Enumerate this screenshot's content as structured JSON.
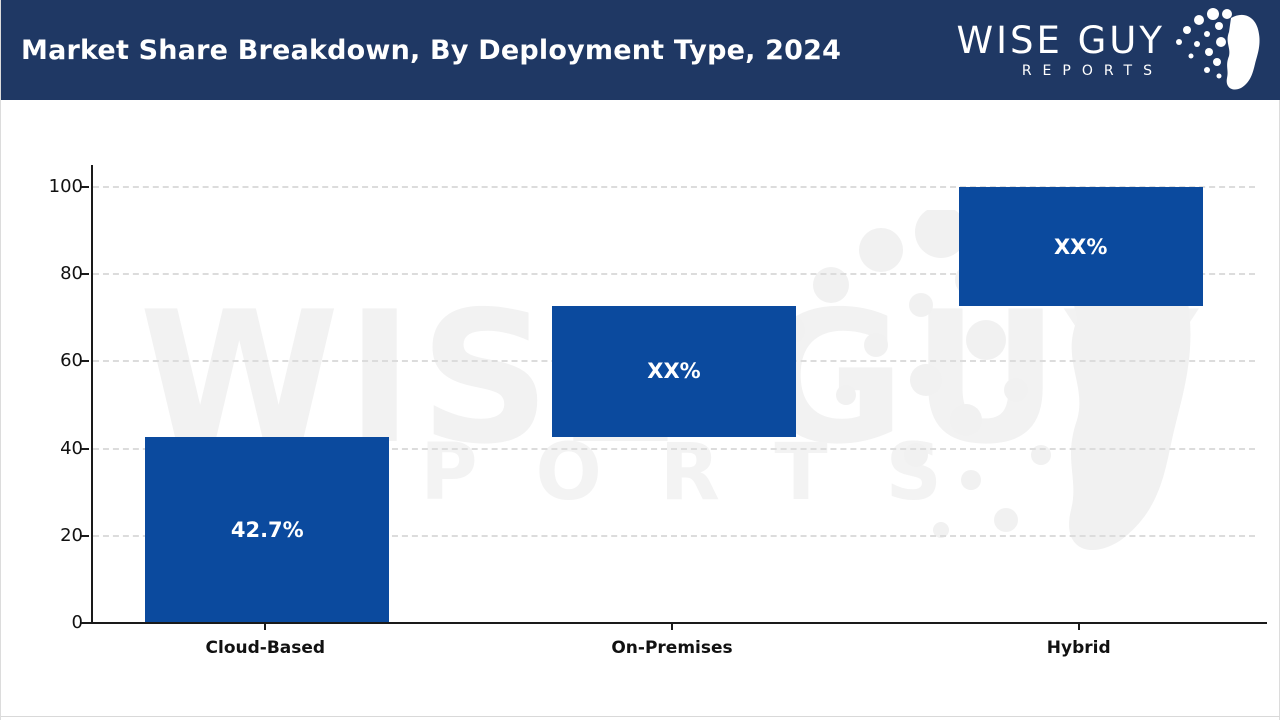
{
  "header": {
    "title": "Market Share Breakdown, By Deployment Type, 2024",
    "bg_color": "#1f3864",
    "logo": {
      "line1": "WISE GUY",
      "line2": "REPORTS"
    }
  },
  "watermark": {
    "line1": "WISE GUY",
    "line2": "REPORTS"
  },
  "chart_data": {
    "type": "bar",
    "subtype": "floating-segment-waterfall",
    "title": "Market Share Breakdown, By Deployment Type, 2024",
    "categories": [
      "Cloud-Based",
      "On-Premises",
      "Hybrid"
    ],
    "segments": [
      {
        "category": "Cloud-Based",
        "start": 0,
        "end": 42.7,
        "label": "42.7%"
      },
      {
        "category": "On-Premises",
        "start": 42.7,
        "end": 72.7,
        "label": "XX%"
      },
      {
        "category": "Hybrid",
        "start": 72.7,
        "end": 100,
        "label": "XX%"
      }
    ],
    "xlabel": "",
    "ylabel": "",
    "ylim": [
      0,
      105
    ],
    "yticks": [
      0,
      20,
      40,
      60,
      80,
      100
    ],
    "grid": "horizontal dashed",
    "legend": "none",
    "bar_color": "#0b4a9e",
    "bar_label_color": "#ffffff",
    "axis_color": "#1a1a1a",
    "gridline_color": "#dcdcdc"
  }
}
